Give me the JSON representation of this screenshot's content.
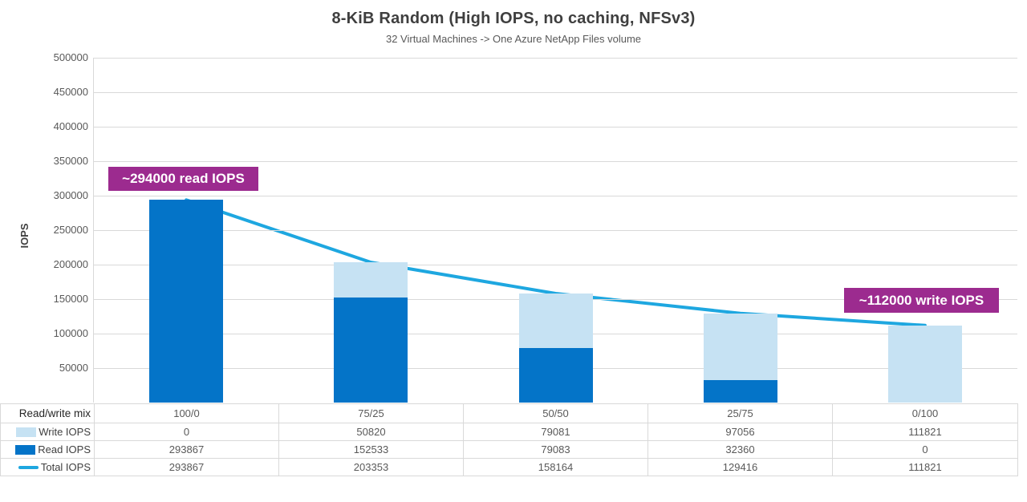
{
  "header": {
    "title": "8-KiB Random (High IOPS, no caching, NFSv3)",
    "subtitle": "32 Virtual Machines -> One Azure NetApp Files volume"
  },
  "chart_data": {
    "type": "bar",
    "subtype": "stacked-bars-with-total-line",
    "title": "8-KiB Random (High IOPS, no caching, NFSv3)",
    "subtitle": "32 Virtual Machines -> One Azure NetApp Files volume",
    "xlabel": "",
    "ylabel": "IOPS",
    "row_header_label": "Read/write mix",
    "categories": [
      "100/0",
      "75/25",
      "50/50",
      "25/75",
      "0/100"
    ],
    "series": [
      {
        "name": "Write IOPS",
        "render": "bar",
        "stack": "top",
        "color": "#c6e2f3",
        "values": [
          0,
          50820,
          79081,
          97056,
          111821
        ]
      },
      {
        "name": "Read IOPS",
        "render": "bar",
        "stack": "bottom",
        "color": "#0474c8",
        "values": [
          293867,
          152533,
          79083,
          32360,
          0
        ]
      },
      {
        "name": "Total IOPS",
        "render": "line",
        "color": "#1ea7e0",
        "values": [
          293867,
          203353,
          158164,
          129416,
          111821
        ]
      }
    ],
    "ylim": [
      0,
      500000
    ],
    "yticks": [
      500000,
      450000,
      400000,
      350000,
      300000,
      250000,
      200000,
      150000,
      100000,
      50000
    ],
    "grid": "horizontal",
    "legend_position": "table-left"
  },
  "annotations": [
    {
      "text": "~294000 read IOPS",
      "color": "#9c2b8f"
    },
    {
      "text": "~112000 write IOPS",
      "color": "#9c2b8f"
    }
  ],
  "colors": {
    "grid": "#d9d9d9",
    "tick_text": "#595959",
    "title_text": "#3f3f3f",
    "annotation_bg": "#9c2b8f"
  }
}
